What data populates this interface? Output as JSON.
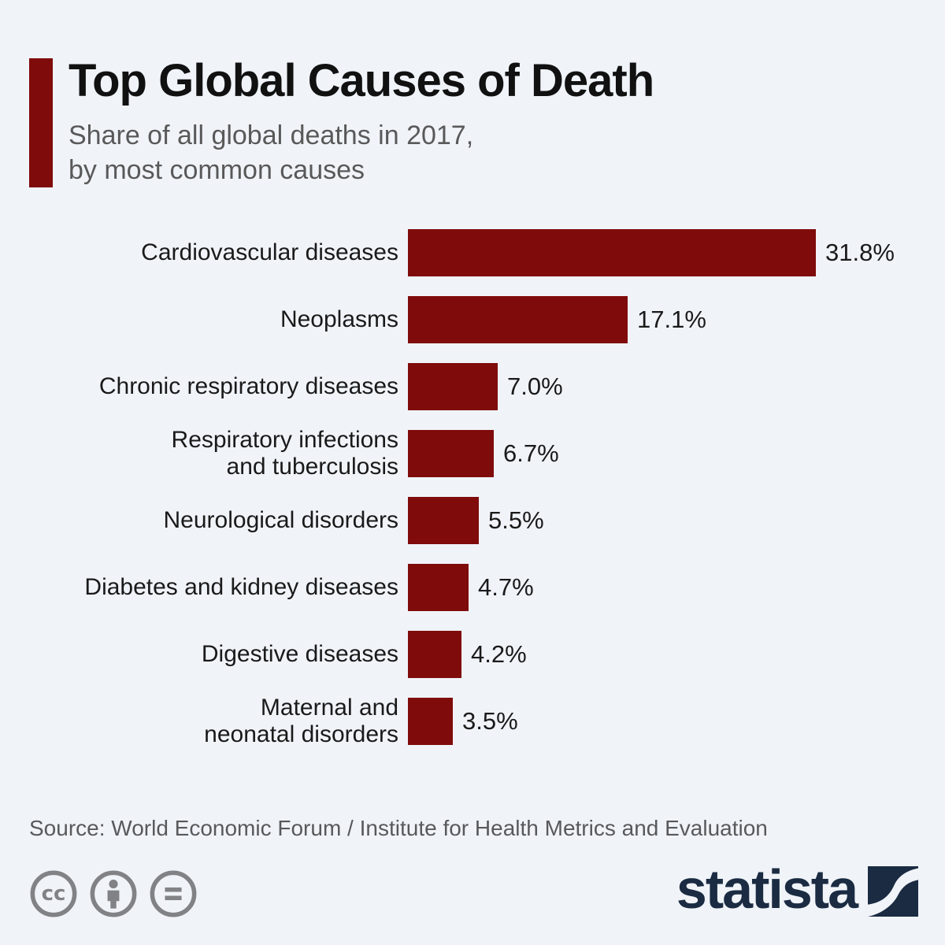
{
  "header": {
    "title": "Top Global Causes of Death",
    "subtitle": "Share of all global deaths in 2017,\nby most common causes"
  },
  "chart_data": {
    "type": "bar",
    "orientation": "horizontal",
    "title": "Top Global Causes of Death",
    "subtitle": "Share of all global deaths in 2017, by most common causes",
    "categories": [
      "Cardiovascular diseases",
      "Neoplasms",
      "Chronic respiratory diseases",
      "Respiratory infections\nand tuberculosis",
      "Neurological disorders",
      "Diabetes and kidney diseases",
      "Digestive diseases",
      "Maternal and\nneonatal disorders"
    ],
    "values": [
      31.8,
      17.1,
      7.0,
      6.7,
      5.5,
      4.7,
      4.2,
      3.5
    ],
    "value_labels": [
      "31.8%",
      "17.1%",
      "7.0%",
      "6.7%",
      "5.5%",
      "4.7%",
      "4.2%",
      "3.5%"
    ],
    "unit": "% of all global deaths",
    "xlim": [
      0,
      33
    ],
    "grid": false,
    "legend": false,
    "bar_color": "#7f0b0b",
    "value_label_position": "right-of-bar"
  },
  "footer": {
    "source": "Source: World Economic Forum / Institute for Health Metrics and Evaluation",
    "license_icons": [
      "cc-icon",
      "attribution-icon",
      "no-derivatives-icon"
    ],
    "brand": "statista"
  },
  "colors": {
    "background": "#f0f4f9",
    "bar": "#7f0b0b",
    "title_text": "#111111",
    "subtitle_text": "#595959",
    "source_text": "#58595b",
    "brand_navy": "#1a2b42",
    "icon_gray": "#808285"
  }
}
